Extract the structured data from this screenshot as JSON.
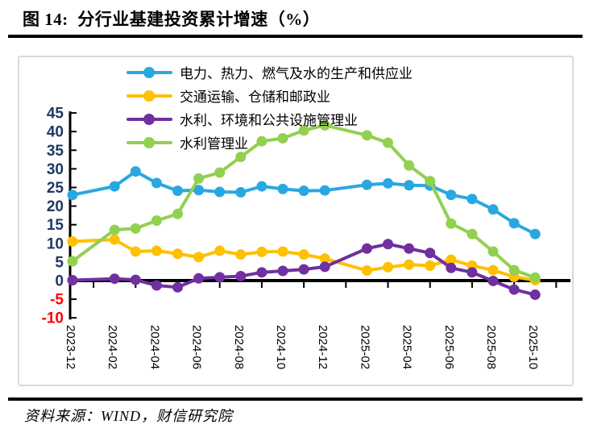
{
  "title": "图 14:  分行业基建投资累计增速（%）",
  "source": "资料来源：WIND，财信研究院",
  "chart_data": {
    "type": "line",
    "title": "分行业基建投资累计增速（%）",
    "xlabel": "",
    "ylabel": "",
    "grid": false,
    "legend_position": "top-inside",
    "x_labels": [
      "2023-12",
      "2024-02",
      "2024-04",
      "2024-06",
      "2024-08",
      "2024-10",
      "2024-12",
      "2025-02",
      "2025-04",
      "2025-06",
      "2025-08",
      "2025-10"
    ],
    "x_slots": [
      "2023-12",
      "2024-01",
      "2024-02",
      "2024-03",
      "2024-04",
      "2024-05",
      "2024-06",
      "2024-07",
      "2024-08",
      "2024-09",
      "2024-10",
      "2024-11",
      "2024-12",
      "2025-01",
      "2025-02",
      "2025-03",
      "2025-04",
      "2025-05",
      "2025-06",
      "2025-07",
      "2025-08",
      "2025-09",
      "2025-10"
    ],
    "note": "2024-01 and 2025-01 have no data points (cumulative series skip January)",
    "y_axis": {
      "min": -10,
      "max": 45,
      "step": 5,
      "positive_color": "#1F3864",
      "negative_color": "#FF0000"
    },
    "series": [
      {
        "label": "电力、热力、燃气及水的生产和供应业",
        "color": "#29A8E0",
        "values": [
          23.0,
          null,
          25.3,
          29.3,
          26.2,
          24.1,
          24.3,
          23.8,
          23.7,
          25.3,
          24.6,
          24.1,
          24.2,
          null,
          25.7,
          26.1,
          25.6,
          25.5,
          23.0,
          21.9,
          19.1,
          15.4,
          12.5
        ]
      },
      {
        "label": "交通运输、仓储和邮政业",
        "color": "#FFC000",
        "values": [
          10.5,
          null,
          11.0,
          7.8,
          8.0,
          7.2,
          6.3,
          8.0,
          7.0,
          7.7,
          7.8,
          7.0,
          5.9,
          null,
          2.7,
          3.6,
          4.3,
          4.0,
          5.6,
          4.0,
          2.8,
          1.0,
          0.1
        ]
      },
      {
        "label": "水利、环境和公共设施管理业",
        "color": "#7030A0",
        "values": [
          0.1,
          null,
          0.5,
          0.2,
          -1.3,
          -1.8,
          0.6,
          0.9,
          1.2,
          2.2,
          2.6,
          3.0,
          3.7,
          null,
          8.6,
          9.8,
          8.6,
          7.4,
          3.4,
          2.2,
          -0.1,
          -2.4,
          -3.8
        ]
      },
      {
        "label": "水利管理业",
        "color": "#92D050",
        "values": [
          5.2,
          null,
          13.6,
          14.0,
          16.1,
          17.9,
          27.4,
          29.0,
          33.2,
          37.4,
          38.2,
          40.3,
          41.7,
          null,
          39.0,
          37.0,
          30.9,
          26.7,
          15.3,
          12.5,
          7.8,
          2.8,
          0.8
        ]
      }
    ]
  }
}
